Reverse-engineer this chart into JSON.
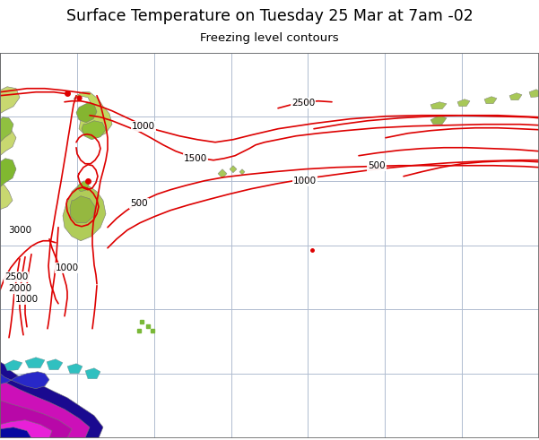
{
  "title": "Surface Temperature on Tuesday 25 Mar at 7am -02",
  "subtitle": "Freezing level contours",
  "title_fontsize": 12.5,
  "subtitle_fontsize": 9.5,
  "bg_color": "#c8d4e8",
  "grid_color": "#b0bcd0",
  "figsize": [
    6.01,
    4.91
  ],
  "dpi": 100,
  "title_bg": "#ffffff",
  "contour_color": "#dd0000",
  "contour_lw": 1.2,
  "label_fontsize": 7.5
}
